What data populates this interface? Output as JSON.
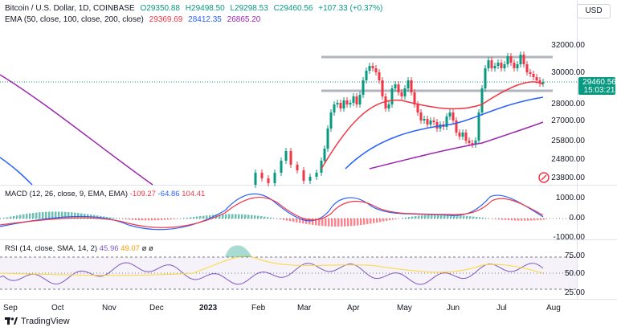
{
  "header": {
    "symbol": "Bitcoin / U.S. Dollar, 1D, COINBASE",
    "open": "O29350.88",
    "high": "H29498.50",
    "low": "L29298.53",
    "close": "C29460.56",
    "change": "+107.33 (+0.37%)",
    "ema_label": "EMA (50, close, 100, close, 200, close)",
    "ema50": "29369.69",
    "ema100": "28412.35",
    "ema200": "26865.20"
  },
  "currency_button": "USD",
  "price_axis": [
    "32000.00",
    "30000.00",
    "28000.00",
    "27000.00",
    "25800.00",
    "24800.00",
    "23800.00"
  ],
  "price_tag": {
    "value": "29460.56",
    "timer": "15:03:21"
  },
  "macd": {
    "label": "MACD (12, 26, close, 9, EMA, EMA)",
    "v1": "-109.27",
    "v2": "-64.86",
    "v3": "104.41",
    "axis": [
      "1000.00",
      "0.00",
      "-1000.00"
    ]
  },
  "rsi": {
    "label": "RSI (14, close, SMA, 14, 2)",
    "v1": "45.96",
    "v2": "49.07",
    "v3": "ø ø",
    "axis": [
      "75.00",
      "50.00",
      "25.00"
    ]
  },
  "x_axis": [
    "Sep",
    "Oct",
    "Nov",
    "Dec",
    "2023",
    "Feb",
    "Mar",
    "Apr",
    "May",
    "Jun",
    "Jul",
    "Aug"
  ],
  "brand": "TradingView",
  "colors": {
    "up": "#089981",
    "down": "#f23645",
    "ema50": "#f23645",
    "ema100": "#2962ff",
    "ema200": "#9c27b0",
    "rsi": "#7e57c2",
    "rsi_ma": "#fdd835",
    "macd": "#2962ff",
    "signal": "#f23645"
  }
}
